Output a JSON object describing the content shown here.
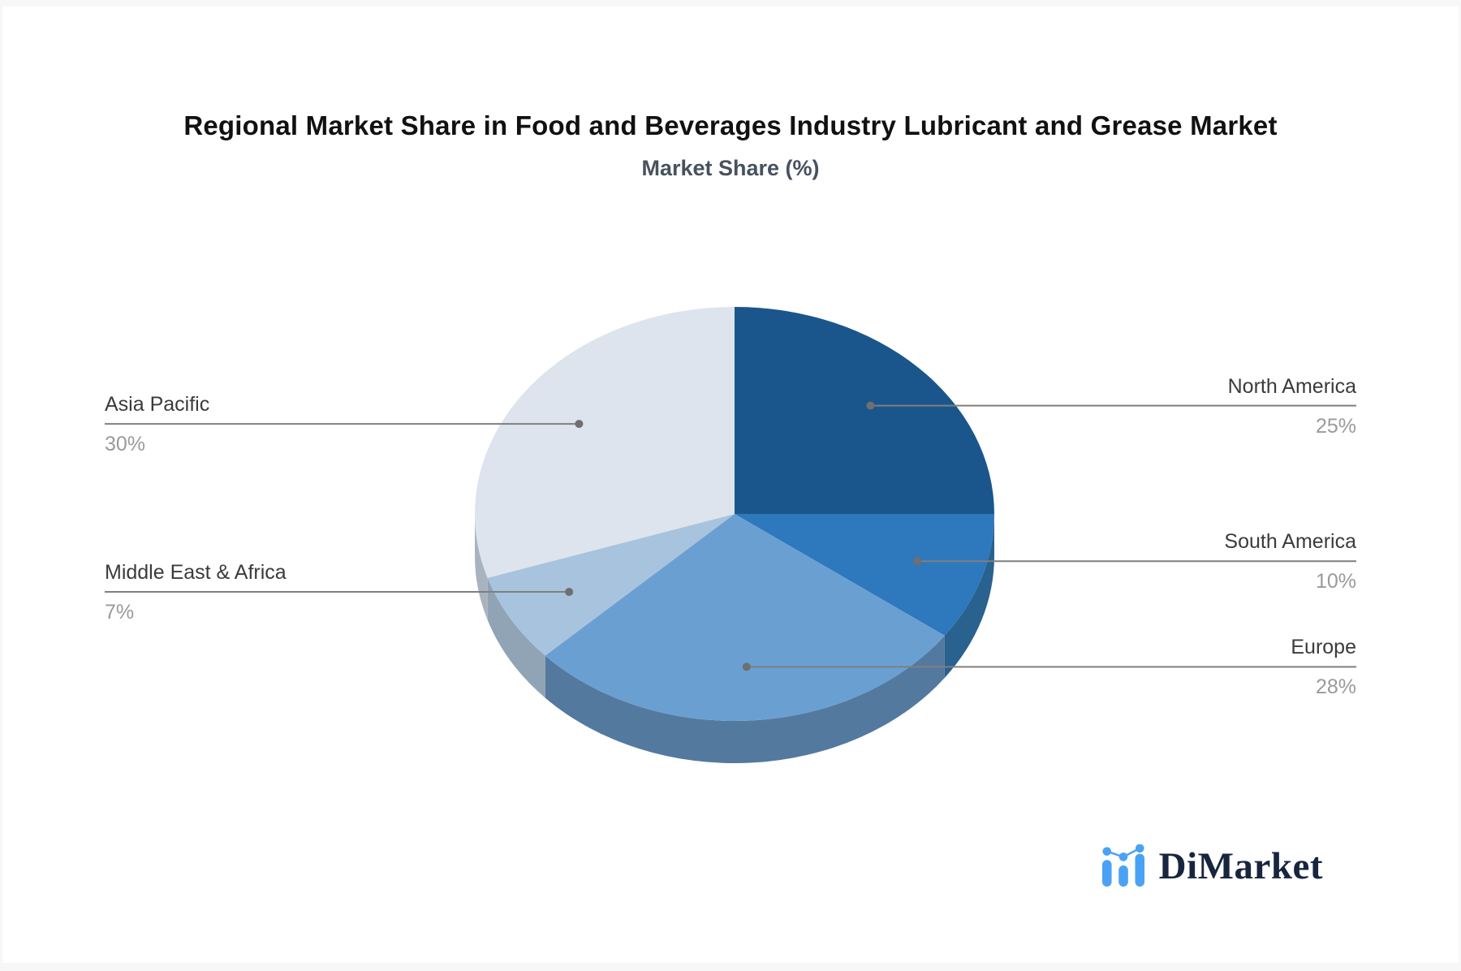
{
  "page": {
    "background_color": "#f7f7f8",
    "card_color": "#ffffff"
  },
  "header": {
    "title": "Regional Market Share in Food and Beverages Industry Lubricant and Grease Market",
    "subtitle": "Market Share (%)"
  },
  "chart_data": {
    "type": "pie",
    "style": "3d",
    "title": "Regional Market Share in Food and Beverages Industry Lubricant and Grease Market",
    "subtitle": "Market Share (%)",
    "unit": "%",
    "start_angle_deg": 0,
    "direction": "clockwise",
    "series": [
      {
        "name": "North America",
        "value": 25,
        "label": "25%",
        "color": "#1a568c",
        "wall_color": "#16497a",
        "label_side": "right"
      },
      {
        "name": "South America",
        "value": 10,
        "label": "10%",
        "color": "#2e78bd",
        "wall_color": "#29618f",
        "label_side": "right"
      },
      {
        "name": "Europe",
        "value": 28,
        "label": "28%",
        "color": "#6a9fd2",
        "wall_color": "#54799e",
        "label_side": "right"
      },
      {
        "name": "Middle East & Africa",
        "value": 7,
        "label": "7%",
        "color": "#a8c3de",
        "wall_color": "#90a4b6",
        "label_side": "left"
      },
      {
        "name": "Asia Pacific",
        "value": 30,
        "label": "30%",
        "color": "#dde4ee",
        "wall_color": "#a9b3bf",
        "label_side": "left"
      }
    ],
    "leader_line_color": "#7f7f7f",
    "leader_dot_color": "#6f6f6f",
    "label_color": "#3b3b3b",
    "value_color": "#9a9a9a",
    "legend": "none"
  },
  "branding": {
    "logo_text": "DiMarket",
    "logo_bar_color": "#4aa2f4",
    "logo_text_color": "#17253f"
  }
}
